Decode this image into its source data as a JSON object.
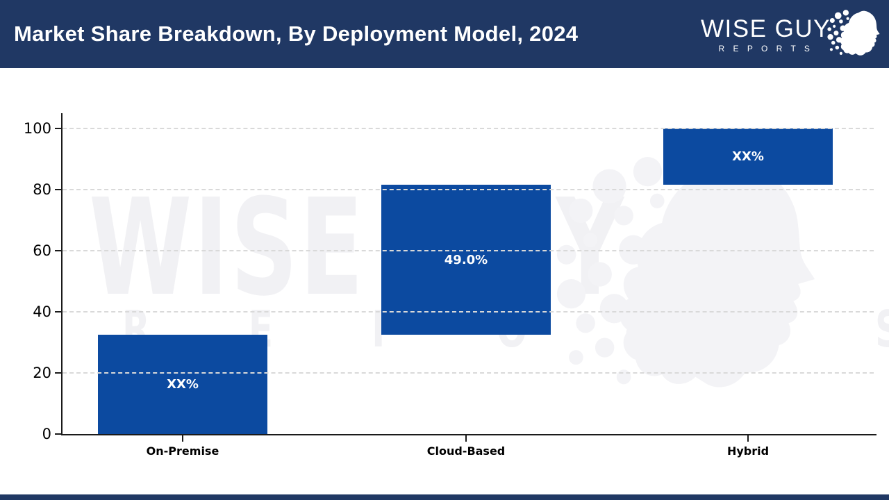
{
  "header": {
    "title": "Market Share Breakdown, By Deployment Model, 2024",
    "logo": {
      "line1": "WISE GUY",
      "line2": "R E P O R T S"
    }
  },
  "watermark": {
    "line1": "WISE GUY",
    "line2": "R E P O R T S"
  },
  "chart_data": {
    "type": "bar",
    "variant": "floating-segment-waterfall",
    "title": "Market Share Breakdown, By Deployment Model, 2024",
    "xlabel": "",
    "ylabel": "",
    "categories": [
      "On-Premise",
      "Cloud-Based",
      "Hybrid"
    ],
    "segments": [
      {
        "category": "On-Premise",
        "start": 0,
        "end": 32.5,
        "label": "XX%"
      },
      {
        "category": "Cloud-Based",
        "start": 32.5,
        "end": 81.5,
        "label": "49.0%"
      },
      {
        "category": "Hybrid",
        "start": 81.5,
        "end": 100,
        "label": "XX%"
      }
    ],
    "yticks": [
      0,
      20,
      40,
      60,
      80,
      100
    ],
    "ylim": [
      0,
      105
    ],
    "grid": "dashed-horizontal",
    "legend": "none"
  },
  "colors": {
    "header_bg": "#203864",
    "footer_bg": "#203864",
    "bar": "#0c4aa0",
    "bar_label": "#ffffff",
    "gridline": "#d9d9d9",
    "axis": "#1a1a1a",
    "watermark": "#f1f1f4",
    "background": "#ffffff"
  }
}
